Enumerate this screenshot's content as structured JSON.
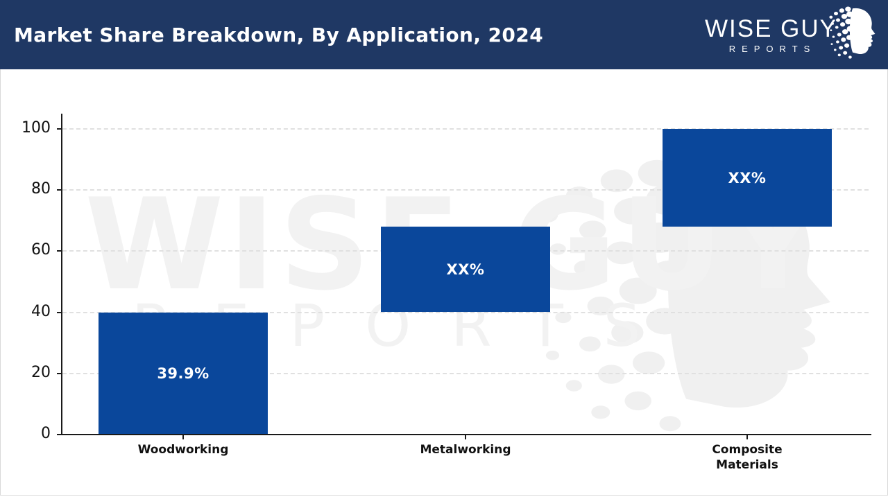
{
  "header": {
    "title": "Market Share Breakdown, By Application, 2024",
    "logo": {
      "primary": "WISE GUY",
      "secondary": "REPORTS"
    }
  },
  "watermark": {
    "primary": "WISE GUY",
    "secondary": "REPORTS"
  },
  "chart_data": {
    "type": "bar",
    "variant": "waterfall-breakdown",
    "title": "Market Share Breakdown, By Application, 2024",
    "categories": [
      "Woodworking",
      "Metalworking",
      "Composite Materials"
    ],
    "segments": [
      {
        "category": "Woodworking",
        "start": 0,
        "end": 39.9,
        "label": "39.9%"
      },
      {
        "category": "Metalworking",
        "start": 40,
        "end": 68,
        "label": "XX%"
      },
      {
        "category": "Composite Materials",
        "start": 68,
        "end": 100,
        "label": "XX%"
      }
    ],
    "xlabel": "",
    "ylabel": "",
    "ylim": [
      0,
      100
    ],
    "yticks": [
      0,
      20,
      40,
      60,
      80,
      100
    ],
    "grid": {
      "axis": "y",
      "style": "dashed",
      "color": "#e0e0e0"
    },
    "legend": null,
    "bar_color": "#0a479b",
    "bar_label_color": "#ffffff"
  },
  "colors": {
    "header_bg": "#1f3864",
    "axis": "#1a1a1a",
    "watermark": "#f2f2f2",
    "frame_border": "#d9d9d9"
  }
}
